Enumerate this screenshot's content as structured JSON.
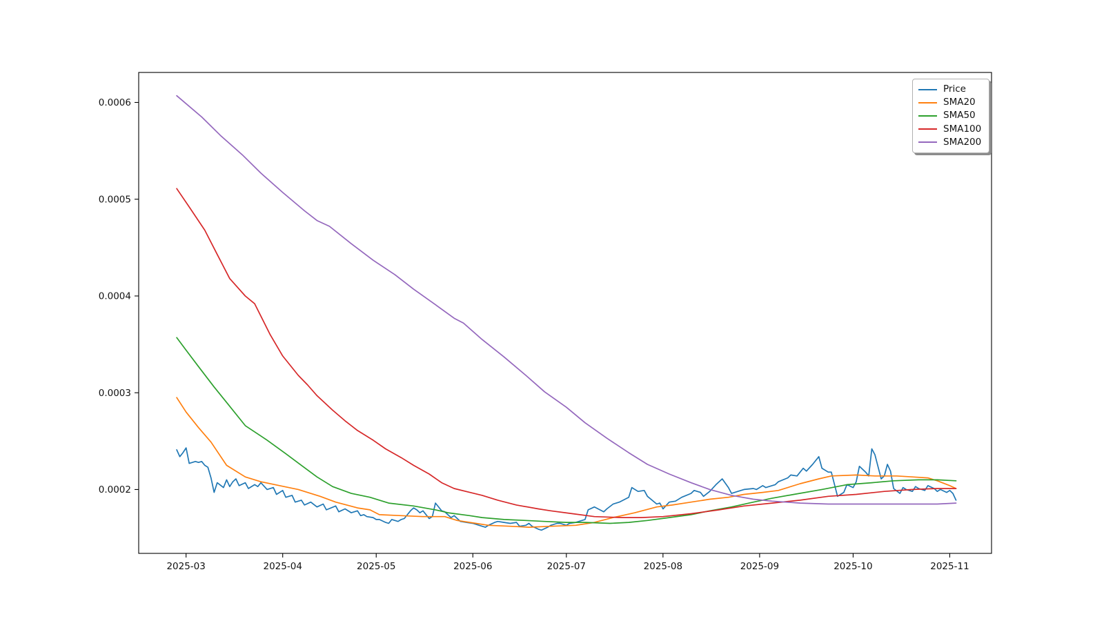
{
  "figure": {
    "background": "#ffffff",
    "title": ""
  },
  "chart_data": {
    "type": "line",
    "title": "",
    "xlabel": "",
    "ylabel": "",
    "grid": false,
    "legend_position": "upper right",
    "x_unit": "days since 2025-02-26",
    "y_value_scale": 1e-06,
    "xlim": [
      -12.2,
      261.4
    ],
    "ylim": [
      134,
      631
    ],
    "x_ticks": [
      {
        "day": 3,
        "label": "2025-03"
      },
      {
        "day": 34,
        "label": "2025-04"
      },
      {
        "day": 64,
        "label": "2025-05"
      },
      {
        "day": 95,
        "label": "2025-06"
      },
      {
        "day": 125,
        "label": "2025-07"
      },
      {
        "day": 156,
        "label": "2025-08"
      },
      {
        "day": 187,
        "label": "2025-09"
      },
      {
        "day": 217,
        "label": "2025-10"
      },
      {
        "day": 248,
        "label": "2025-11"
      }
    ],
    "y_ticks": [
      {
        "value": 200,
        "label": "0.0002"
      },
      {
        "value": 300,
        "label": "0.0003"
      },
      {
        "value": 400,
        "label": "0.0004"
      },
      {
        "value": 500,
        "label": "0.0005"
      },
      {
        "value": 600,
        "label": "0.0006"
      }
    ],
    "series": [
      {
        "name": "Price",
        "color": "#1f77b4",
        "x": [
          0,
          1,
          2,
          3,
          4,
          6,
          7,
          8,
          9,
          10,
          11,
          12,
          13,
          15,
          16,
          17,
          18,
          19,
          20,
          22,
          23,
          25,
          26,
          27,
          29,
          31,
          32,
          34,
          35,
          37,
          38,
          40,
          41,
          43,
          45,
          47,
          48,
          51,
          52,
          54,
          56,
          58,
          59,
          60,
          61,
          63,
          64,
          65,
          67,
          68,
          69,
          71,
          72,
          73,
          75,
          76,
          77,
          78,
          79,
          81,
          82,
          83,
          85,
          86,
          88,
          89,
          91,
          93,
          95,
          98,
          99,
          100,
          102,
          103,
          105,
          107,
          109,
          110,
          112,
          113,
          114,
          116,
          117,
          119,
          120,
          122,
          123,
          125,
          126,
          128,
          129,
          131,
          132,
          134,
          137,
          138,
          140,
          142,
          145,
          146,
          148,
          150,
          151,
          154,
          155,
          156,
          158,
          160,
          162,
          165,
          166,
          168,
          169,
          171,
          173,
          175,
          177,
          178,
          180,
          182,
          185,
          186,
          188,
          189,
          192,
          193,
          196,
          197,
          199,
          201,
          202,
          204,
          206,
          207,
          209,
          210,
          212,
          214,
          215,
          217,
          218,
          219,
          221,
          222,
          223,
          224,
          226,
          227,
          228,
          229,
          230,
          232,
          233,
          234,
          236,
          237,
          238,
          240,
          241,
          243,
          244,
          245,
          247,
          248,
          249,
          250
        ],
        "y": [
          241,
          234,
          238,
          243,
          227,
          229,
          228,
          229,
          225,
          223,
          212,
          197,
          207,
          202,
          210,
          203,
          208,
          211,
          204,
          207,
          201,
          205,
          203,
          207,
          200,
          202,
          195,
          199,
          192,
          194,
          187,
          189,
          184,
          187,
          182,
          185,
          179,
          183,
          177,
          180,
          176,
          178,
          173,
          174,
          172,
          171,
          169,
          169,
          166,
          165,
          169,
          167,
          169,
          170,
          178,
          181,
          179,
          176,
          178,
          170,
          172,
          186,
          178,
          177,
          171,
          173,
          167,
          166,
          165,
          162,
          161,
          163,
          166,
          167,
          166,
          165,
          166,
          162,
          163,
          165,
          162,
          159,
          158,
          161,
          163,
          165,
          165,
          163,
          165,
          166,
          167,
          169,
          179,
          182,
          177,
          180,
          185,
          187,
          192,
          202,
          198,
          199,
          193,
          185,
          186,
          180,
          187,
          188,
          192,
          196,
          199,
          197,
          193,
          198,
          205,
          211,
          202,
          196,
          198,
          200,
          201,
          200,
          204,
          202,
          205,
          208,
          212,
          215,
          214,
          222,
          219,
          226,
          234,
          222,
          218,
          218,
          193,
          197,
          205,
          202,
          208,
          224,
          218,
          214,
          242,
          236,
          211,
          214,
          226,
          219,
          201,
          196,
          202,
          200,
          198,
          203,
          201,
          199,
          204,
          201,
          198,
          200,
          197,
          199,
          196,
          189
        ]
      },
      {
        "name": "SMA20",
        "color": "#ff7f0e",
        "x": [
          0,
          3,
          7,
          11,
          16,
          22,
          27,
          33,
          39,
          46,
          51,
          58,
          62,
          65,
          72,
          79,
          86,
          90,
          96,
          100,
          107,
          113,
          120,
          128,
          134,
          140,
          147,
          154,
          159,
          165,
          171,
          177,
          182,
          188,
          193,
          200,
          206,
          210,
          218,
          224,
          231,
          236,
          241,
          244,
          248,
          250
        ],
        "y": [
          295,
          280,
          264,
          249,
          225,
          213,
          208,
          204,
          200,
          193,
          187,
          181,
          179,
          174,
          173,
          172,
          172,
          168,
          165,
          163,
          162,
          161,
          162,
          163,
          166,
          171,
          176,
          182,
          184,
          187,
          190,
          192,
          195,
          197,
          199,
          206,
          211,
          214,
          215,
          214,
          214,
          213,
          212,
          209,
          204,
          201
        ]
      },
      {
        "name": "SMA50",
        "color": "#2ca02c",
        "x": [
          0,
          3,
          7,
          12,
          16,
          22,
          29,
          35,
          40,
          45,
          50,
          56,
          62,
          68,
          76,
          83,
          87,
          94,
          98,
          105,
          112,
          118,
          125,
          131,
          139,
          145,
          151,
          158,
          165,
          171,
          178,
          185,
          191,
          198,
          207,
          215,
          223,
          230,
          238,
          244,
          250
        ],
        "y": [
          357,
          344,
          327,
          306,
          290,
          266,
          251,
          237,
          225,
          213,
          203,
          196,
          192,
          186,
          183,
          179,
          176,
          173,
          171,
          169,
          168,
          167,
          166,
          166,
          165,
          166,
          168,
          171,
          174,
          178,
          182,
          187,
          191,
          195,
          200,
          205,
          207,
          209,
          210,
          210,
          209
        ]
      },
      {
        "name": "SMA100",
        "color": "#d62728",
        "x": [
          0,
          4,
          9,
          13,
          17,
          22,
          25,
          30,
          34,
          39,
          42,
          45,
          50,
          54,
          58,
          63,
          67,
          72,
          76,
          81,
          85,
          89,
          94,
          98,
          103,
          109,
          116,
          120,
          127,
          134,
          143,
          149,
          156,
          165,
          174,
          182,
          191,
          200,
          209,
          218,
          227,
          236,
          244,
          250
        ],
        "y": [
          511,
          492,
          468,
          443,
          418,
          400,
          392,
          360,
          338,
          318,
          308,
          297,
          282,
          271,
          261,
          251,
          242,
          233,
          225,
          216,
          207,
          201,
          197,
          194,
          189,
          184,
          180,
          178,
          175,
          172,
          171,
          171,
          172,
          175,
          179,
          183,
          186,
          189,
          193,
          195,
          198,
          200,
          201,
          201
        ]
      },
      {
        "name": "SMA200",
        "color": "#9467bd",
        "x": [
          0,
          8,
          14,
          21,
          27,
          34,
          41,
          45,
          49,
          56,
          63,
          70,
          76,
          83,
          89,
          92,
          98,
          105,
          112,
          118,
          125,
          131,
          138,
          145,
          151,
          158,
          165,
          171,
          178,
          185,
          191,
          200,
          209,
          218,
          227,
          236,
          244,
          250
        ],
        "y": [
          607,
          585,
          566,
          546,
          527,
          507,
          488,
          478,
          472,
          454,
          437,
          422,
          407,
          391,
          377,
          372,
          355,
          337,
          318,
          301,
          285,
          269,
          253,
          238,
          226,
          216,
          207,
          200,
          194,
          190,
          188,
          186,
          185,
          185,
          185,
          185,
          185,
          186
        ]
      }
    ]
  }
}
